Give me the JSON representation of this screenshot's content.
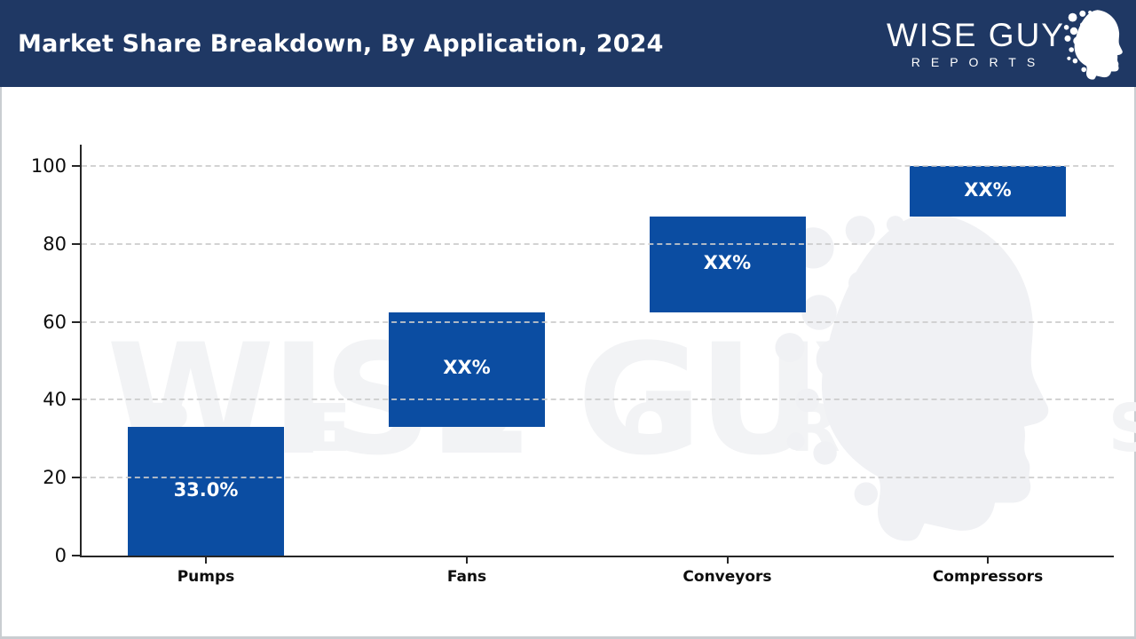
{
  "header": {
    "title": "Market Share Breakdown, By Application, 2024",
    "logo": {
      "line1": "WISE GUY",
      "line2": "REPORTS"
    }
  },
  "watermark": {
    "line1": "WISE GUY.",
    "line2": "R E P O R T S"
  },
  "chart_data": {
    "type": "bar",
    "subtype": "waterfall-floating-bars",
    "title": "Market Share Breakdown, By Application, 2024",
    "categories": [
      "Pumps",
      "Fans",
      "Conveyors",
      "Compressors"
    ],
    "bars": [
      {
        "category": "Pumps",
        "start": 0,
        "end": 33,
        "label": "33.0%"
      },
      {
        "category": "Fans",
        "start": 33,
        "end": 62.5,
        "label": "XX%"
      },
      {
        "category": "Conveyors",
        "start": 62.5,
        "end": 87,
        "label": "XX%"
      },
      {
        "category": "Compressors",
        "start": 87,
        "end": 100,
        "label": "XX%"
      }
    ],
    "xlabel": "",
    "ylabel": "",
    "ylim": [
      0,
      105.5
    ],
    "yticks": [
      0,
      20,
      40,
      60,
      80,
      100
    ],
    "grid": "horizontal-dashed-over-bars",
    "legend": "none",
    "bar_color": "#0b4da2",
    "header_color": "#1f3864",
    "watermark_color": "#f2f3f5"
  }
}
